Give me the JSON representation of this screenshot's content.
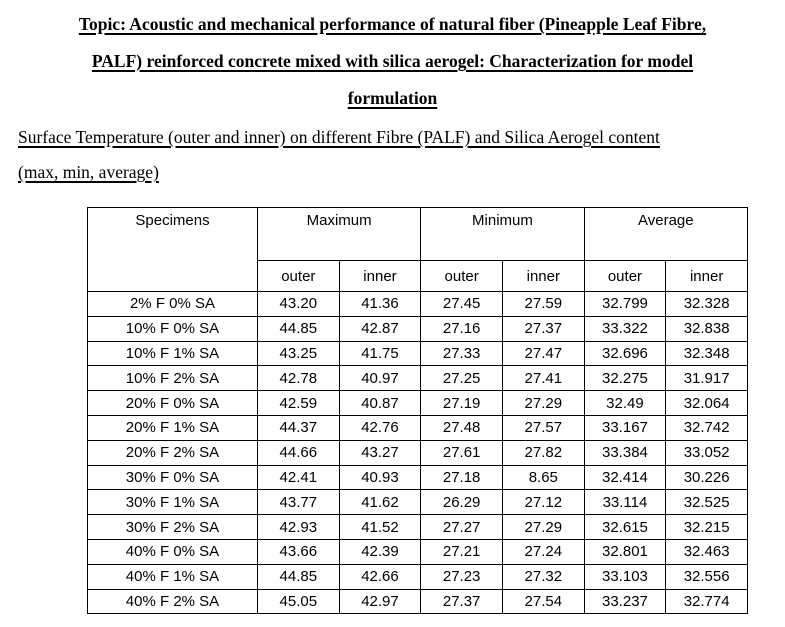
{
  "document": {
    "title_lines": [
      "Topic: Acoustic and mechanical performance of natural fiber (Pineapple Leaf Fibre,",
      "PALF) reinforced concrete mixed with silica aerogel: Characterization for model",
      "formulation"
    ],
    "subtitle_lines": [
      "Surface Temperature (outer and inner) on different Fibre (PALF) and Silica Aerogel content",
      "(max, min, average)"
    ]
  },
  "table": {
    "specimens_header": "Specimens",
    "group_headers": [
      "Maximum",
      "Minimum",
      "Average"
    ],
    "sub_headers": [
      "outer",
      "inner",
      "outer",
      "inner",
      "outer",
      "inner"
    ],
    "rows": [
      {
        "specimen": "2% F 0% SA",
        "values": [
          "43.20",
          "41.36",
          "27.45",
          "27.59",
          "32.799",
          "32.328"
        ]
      },
      {
        "specimen": "10% F 0% SA",
        "values": [
          "44.85",
          "42.87",
          "27.16",
          "27.37",
          "33.322",
          "32.838"
        ]
      },
      {
        "specimen": "10% F 1% SA",
        "values": [
          "43.25",
          "41.75",
          "27.33",
          "27.47",
          "32.696",
          "32.348"
        ]
      },
      {
        "specimen": "10% F 2% SA",
        "values": [
          "42.78",
          "40.97",
          "27.25",
          "27.41",
          "32.275",
          "31.917"
        ]
      },
      {
        "specimen": "20% F 0% SA",
        "values": [
          "42.59",
          "40.87",
          "27.19",
          "27.29",
          "32.49",
          "32.064"
        ]
      },
      {
        "specimen": "20% F 1% SA",
        "values": [
          "44.37",
          "42.76",
          "27.48",
          "27.57",
          "33.167",
          "32.742"
        ]
      },
      {
        "specimen": "20% F 2% SA",
        "values": [
          "44.66",
          "43.27",
          "27.61",
          "27.82",
          "33.384",
          "33.052"
        ]
      },
      {
        "specimen": "30% F 0% SA",
        "values": [
          "42.41",
          "40.93",
          "27.18",
          "8.65",
          "32.414",
          "30.226"
        ]
      },
      {
        "specimen": "30% F 1% SA",
        "values": [
          "43.77",
          "41.62",
          "26.29",
          "27.12",
          "33.114",
          "32.525"
        ]
      },
      {
        "specimen": "30% F 2% SA",
        "values": [
          "42.93",
          "41.52",
          "27.27",
          "27.29",
          "32.615",
          "32.215"
        ]
      },
      {
        "specimen": "40% F 0% SA",
        "values": [
          "43.66",
          "42.39",
          "27.21",
          "27.24",
          "32.801",
          "32.463"
        ]
      },
      {
        "specimen": "40% F 1% SA",
        "values": [
          "44.85",
          "42.66",
          "27.23",
          "27.32",
          "33.103",
          "32.556"
        ]
      },
      {
        "specimen": "40% F 2% SA",
        "values": [
          "45.05",
          "42.97",
          "27.37",
          "27.54",
          "33.237",
          "32.774"
        ]
      }
    ]
  },
  "colors": {
    "text": "#000000",
    "background": "#ffffff",
    "table_border": "#000000"
  }
}
